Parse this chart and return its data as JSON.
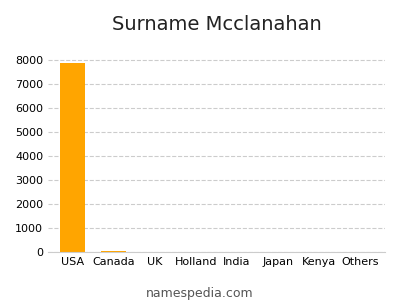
{
  "title": "Surname Mcclanahan",
  "categories": [
    "USA",
    "Canada",
    "UK",
    "Holland",
    "India",
    "Japan",
    "Kenya",
    "Others"
  ],
  "values": [
    7900,
    30,
    0,
    0,
    0,
    0,
    0,
    0
  ],
  "bar_color": "#FFA500",
  "background_color": "#ffffff",
  "ylim": [
    0,
    8800
  ],
  "yticks": [
    0,
    1000,
    2000,
    3000,
    4000,
    5000,
    6000,
    7000,
    8000
  ],
  "grid_color": "#cccccc",
  "footer": "namespedia.com",
  "title_fontsize": 14,
  "tick_fontsize": 8,
  "footer_fontsize": 9
}
